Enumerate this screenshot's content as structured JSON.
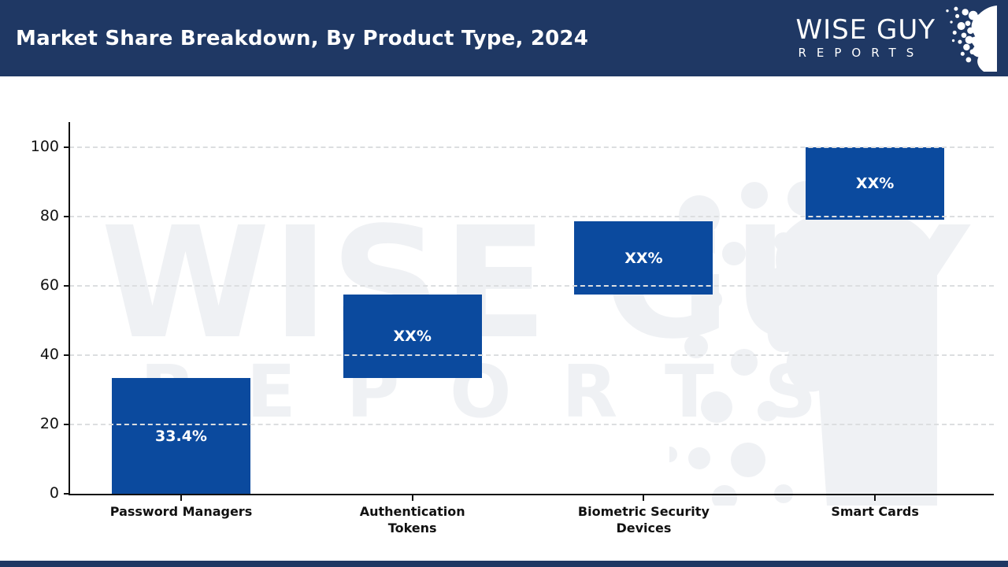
{
  "chart_data": {
    "type": "bar",
    "subtype": "waterfall",
    "title": "Market Share Breakdown, By Product Type, 2024",
    "categories": [
      "Password Managers",
      "Authentication Tokens",
      "Biometric Security Devices",
      "Smart Cards"
    ],
    "bars": [
      {
        "category_display": "Password Managers",
        "label": "33.4%",
        "start": 0,
        "end": 33.4
      },
      {
        "category_display": "Authentication\nTokens",
        "label": "XX%",
        "start": 33.4,
        "end": 57.5
      },
      {
        "category_display": "Biometric Security\nDevices",
        "label": "XX%",
        "start": 57.4,
        "end": 78.7
      },
      {
        "category_display": "Smart Cards",
        "label": "XX%",
        "start": 79,
        "end": 100
      }
    ],
    "xlabel": "",
    "ylabel": "",
    "ylim": [
      0,
      107
    ],
    "yticks": [
      0,
      20,
      40,
      60,
      80,
      100
    ],
    "grid": "horizontal-dashed",
    "legend": "none"
  },
  "header": {
    "logo": {
      "wordmark": "WISE GUY",
      "subtext": "REPORTS"
    }
  },
  "watermark": {
    "line1": "WISE GUY",
    "line2": "REPORTS"
  },
  "colors": {
    "header_bg": "#1f3864",
    "bar": "#0b4a9e",
    "grid": "#dcdee0",
    "axis": "#111111",
    "bar_label": "#ffffff",
    "watermark": "#eff1f4",
    "background": "#ffffff"
  }
}
